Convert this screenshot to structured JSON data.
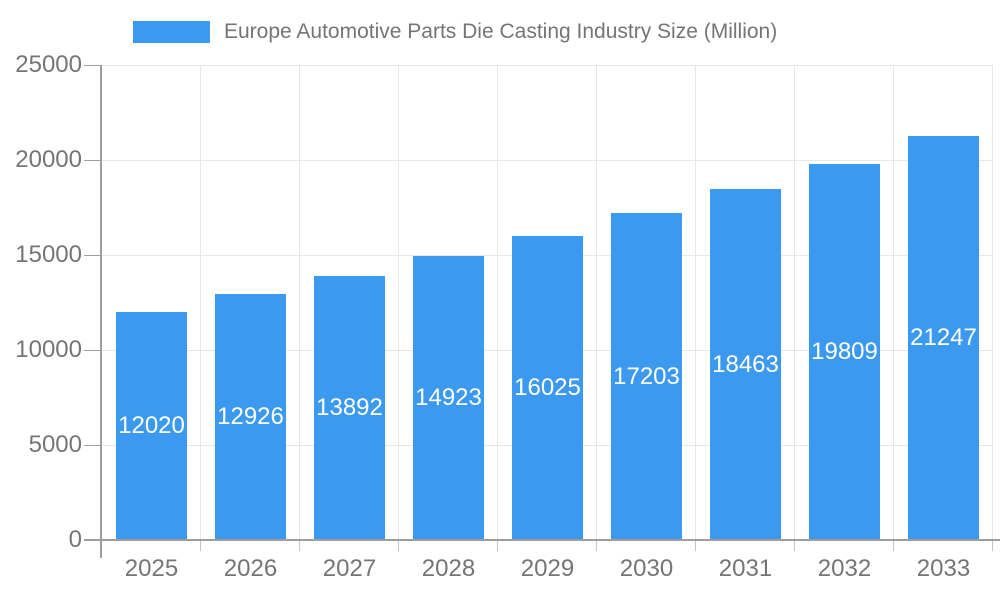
{
  "chart": {
    "legend_label": "Europe Automotive Parts Die Casting Industry Size (Million)"
  },
  "chart_data": {
    "type": "bar",
    "title": "Europe Automotive Parts Die Casting Industry Size (Million)",
    "categories": [
      "2025",
      "2026",
      "2027",
      "2028",
      "2029",
      "2030",
      "2031",
      "2032",
      "2033"
    ],
    "values": [
      12020,
      12926,
      13892,
      14923,
      16025,
      17203,
      18463,
      19809,
      21247
    ],
    "xlabel": "",
    "ylabel": "",
    "ylim": [
      0,
      25000
    ],
    "yticks": [
      0,
      5000,
      10000,
      15000,
      20000,
      25000
    ],
    "grid": true,
    "legend_position": "top",
    "value_labels": "inside-center",
    "colors": {
      "bar": "#3B9AEF",
      "value_label": "#FFFFFF",
      "tick_label": "#757575",
      "axis": "#9E9E9E",
      "x_tick": "#C6C6C6",
      "gridline": "#E7E7E7"
    }
  }
}
